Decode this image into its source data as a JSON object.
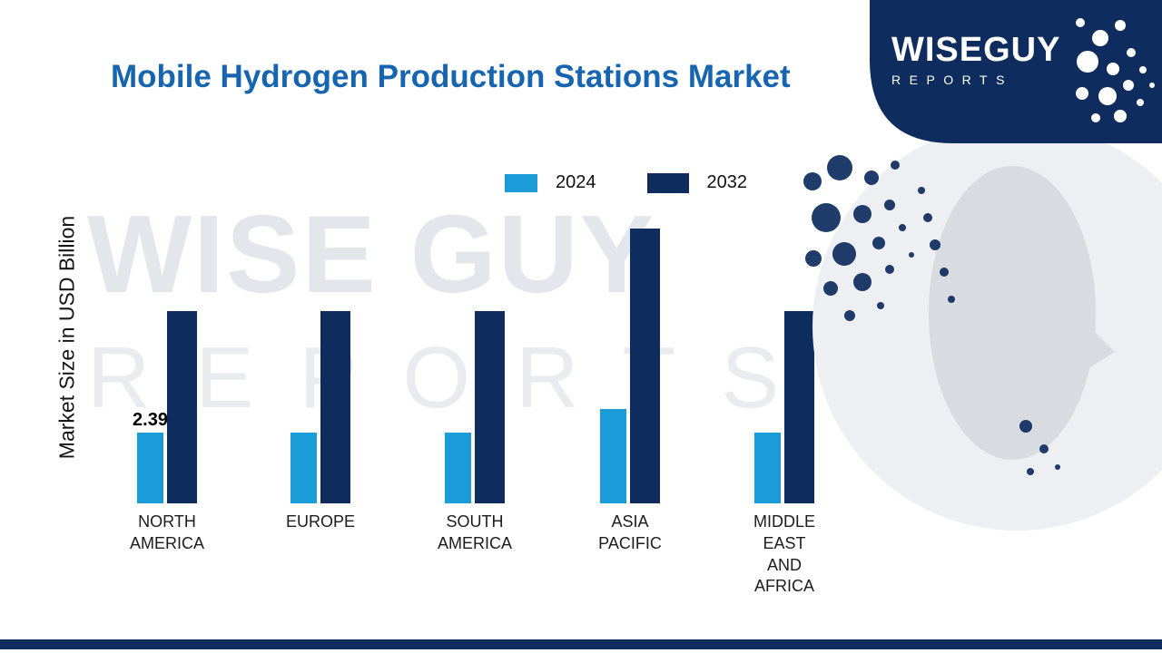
{
  "page": {
    "title": "Mobile Hydrogen Production Stations Market"
  },
  "logo": {
    "brand": "WISEGUY",
    "sub": "REPORTS"
  },
  "watermark": {
    "line1": "WISE GUY",
    "line2": "REPORTS"
  },
  "colors": {
    "title_blue": "#1765b0",
    "series_2024": "#1b9cd8",
    "series_2032": "#0e2c5e",
    "panel_navy": "#0e2c5e",
    "panel_gray": "#edeff2",
    "footer_bar": "#0e2c5e"
  },
  "chart_data": {
    "type": "bar",
    "title": "Mobile Hydrogen Production Stations Market",
    "xlabel": "",
    "ylabel": "Market Size in USD Billion",
    "ylim": [
      0,
      10
    ],
    "grid": false,
    "legend_position": "top-center",
    "categories": [
      "NORTH AMERICA",
      "EUROPE",
      "SOUTH AMERICA",
      "ASIA PACIFIC",
      "MIDDLE EAST AND AFRICA"
    ],
    "category_label_lines": [
      [
        "NORTH",
        "AMERICA"
      ],
      [
        "EUROPE"
      ],
      [
        "SOUTH",
        "AMERICA"
      ],
      [
        "ASIA",
        "PACIFIC"
      ],
      [
        "MIDDLE",
        "EAST",
        "AND",
        "AFRICA"
      ]
    ],
    "series": [
      {
        "name": "2024",
        "color": "#1b9cd8",
        "values": [
          2.39,
          2.39,
          2.39,
          3.2,
          2.39
        ]
      },
      {
        "name": "2032",
        "color": "#0e2c5e",
        "values": [
          6.5,
          6.5,
          6.5,
          9.3,
          6.5
        ]
      }
    ],
    "data_labels": [
      {
        "category_index": 0,
        "series_index": 0,
        "text": "2.39"
      }
    ]
  }
}
